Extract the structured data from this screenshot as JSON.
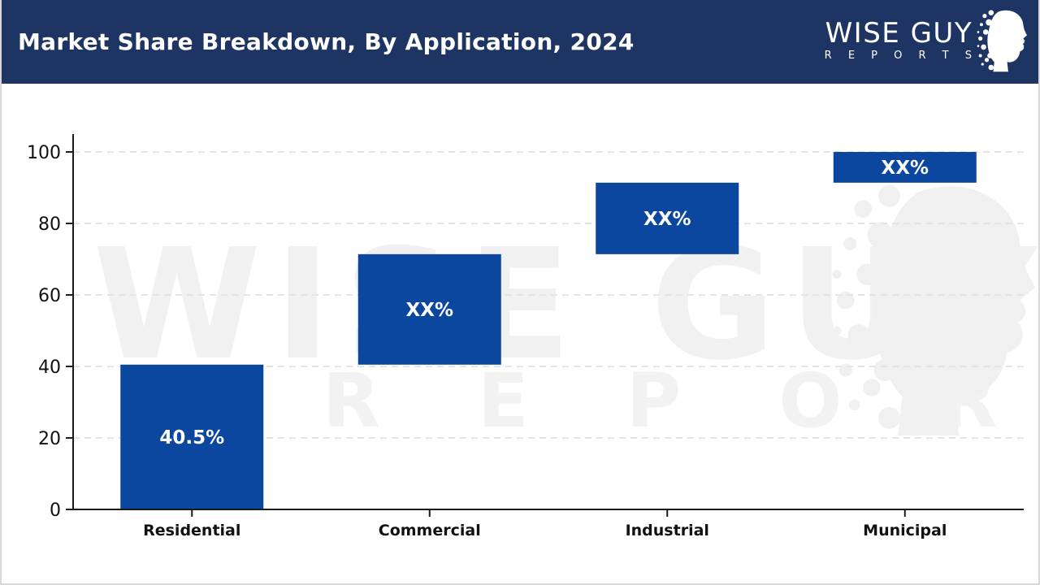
{
  "header": {
    "title": "Market Share Breakdown, By Application, 2024",
    "logo": {
      "line1": "WISE GUY",
      "line2": "R E P O R T S"
    }
  },
  "watermark": {
    "line1": "WISE GUY",
    "line2": "R E P O R T S"
  },
  "chart_data": {
    "type": "bar",
    "subtype": "waterfall-stacked",
    "title": "Market Share Breakdown, By Application, 2024",
    "categories": [
      "Residential",
      "Commercial",
      "Industrial",
      "Municipal"
    ],
    "segments": [
      {
        "category": "Residential",
        "start": 0,
        "end": 40.5,
        "label": "40.5%"
      },
      {
        "category": "Commercial",
        "start": 40.5,
        "end": 71.4,
        "label": "XX%"
      },
      {
        "category": "Industrial",
        "start": 71.4,
        "end": 91.4,
        "label": "XX%"
      },
      {
        "category": "Municipal",
        "start": 91.4,
        "end": 100,
        "label": "XX%"
      }
    ],
    "bar_labels": [
      "40.5%",
      "XX%",
      "XX%",
      "XX%"
    ],
    "yticks": [
      0,
      20,
      40,
      60,
      80,
      100
    ],
    "ylim": [
      0,
      105
    ],
    "xlabel": "",
    "ylabel": "",
    "grid": "horizontal-dashed",
    "legend": "none",
    "colors": {
      "bar": "#0b479f",
      "bar_label": "#ffffff",
      "axis": "#1a1a1a",
      "tick_label": "#111111",
      "grid": "#e4e4e4",
      "header_bg": "#1e3462",
      "watermark": "#f1f1f1"
    }
  }
}
